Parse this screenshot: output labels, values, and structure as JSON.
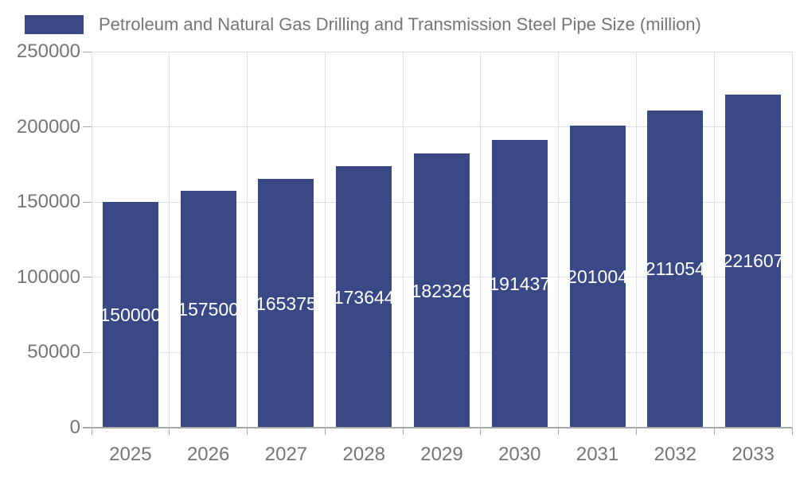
{
  "chart_data": {
    "type": "bar",
    "title": "Petroleum and Natural Gas Drilling and Transmission Steel Pipe Size (million)",
    "legend": [
      "Petroleum and Natural Gas Drilling and Transmission Steel Pipe Size (million)"
    ],
    "legend_position": "top-left",
    "categories": [
      "2025",
      "2026",
      "2027",
      "2028",
      "2029",
      "2030",
      "2031",
      "2032",
      "2033"
    ],
    "values": [
      150000,
      157500,
      165375,
      173644,
      182326,
      191437,
      201004,
      211054,
      221607
    ],
    "bar_labels": [
      "150000",
      "157500",
      "165375",
      "173644",
      "182326",
      "191437",
      "201004",
      "211054",
      "221607"
    ],
    "xlabel": "",
    "ylabel": "",
    "ylim": [
      0,
      250000
    ],
    "yticks": [
      0,
      50000,
      100000,
      150000,
      200000,
      250000
    ],
    "grid": true,
    "colors": {
      "bar": "#394986",
      "bar_label": "#ffffff",
      "grid_line": "#e0e0e0",
      "axis_line": "#a8a8a8",
      "tick_text": "#757575",
      "legend_text": "#757575",
      "background": "#ffffff"
    }
  }
}
